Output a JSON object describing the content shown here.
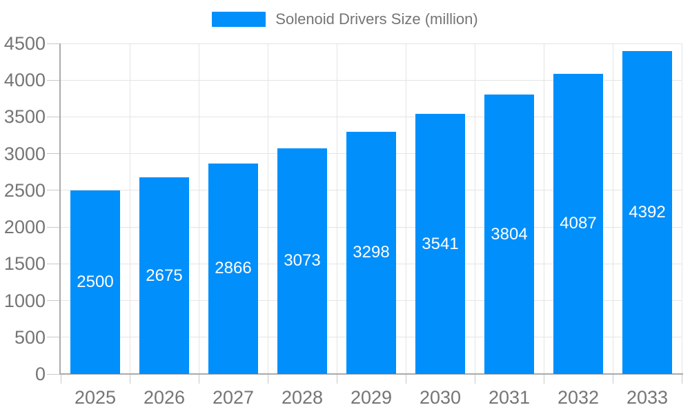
{
  "chart_data": {
    "type": "bar",
    "title": "",
    "legend_label": "Solenoid Drivers Size (million)",
    "legend_position": "top-center",
    "categories": [
      "2025",
      "2026",
      "2027",
      "2028",
      "2029",
      "2030",
      "2031",
      "2032",
      "2033"
    ],
    "series": [
      {
        "name": "Solenoid Drivers Size (million)",
        "values": [
          2500,
          2675,
          2866,
          3073,
          3298,
          3541,
          3804,
          4087,
          4392
        ]
      }
    ],
    "value_labels_shown": true,
    "xlabel": "",
    "ylabel": "",
    "ylim": [
      0,
      4500
    ],
    "ytick_step": 500,
    "yticks": [
      0,
      500,
      1000,
      1500,
      2000,
      2500,
      3000,
      3500,
      4000,
      4500
    ],
    "grid": true
  },
  "colors": {
    "bar": "#008FFB",
    "axis_line": "#aaaaaa",
    "tick_line": "#c8c8c8",
    "gridline": "#e4e4e4",
    "axis_text": "#757575",
    "value_text": "#ffffff",
    "background": "#ffffff"
  }
}
